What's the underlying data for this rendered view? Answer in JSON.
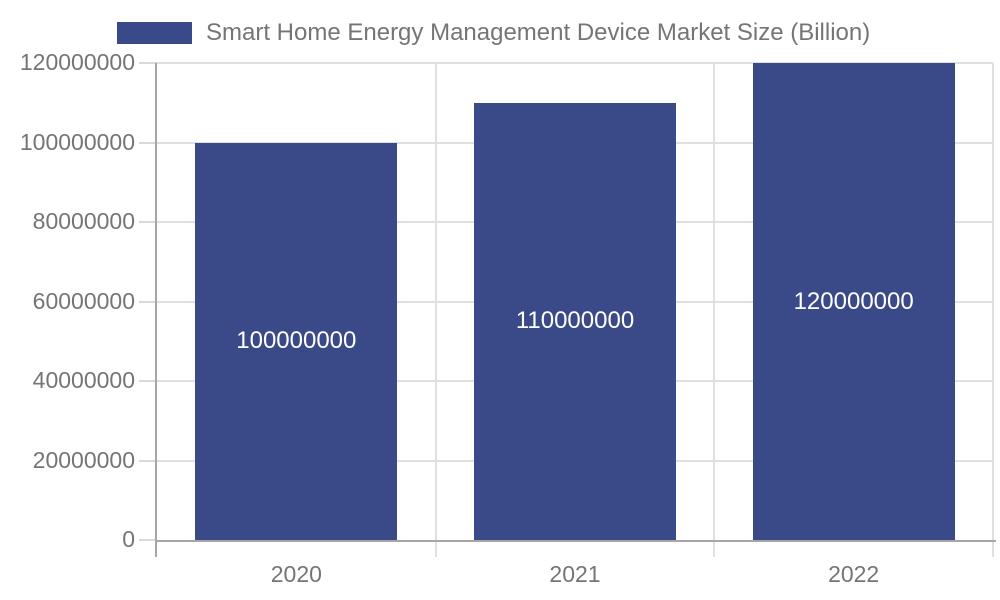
{
  "chart_data": {
    "type": "bar",
    "title": "Smart Home Energy Management Device Market Size (Billion)",
    "categories": [
      "2020",
      "2021",
      "2022"
    ],
    "values": [
      100000000,
      110000000,
      120000000
    ],
    "bar_labels": [
      "100000000",
      "110000000",
      "120000000"
    ],
    "xlabel": "",
    "ylabel": "",
    "ylim": [
      0,
      120000000
    ],
    "y_ticks": [
      0,
      20000000,
      40000000,
      60000000,
      80000000,
      100000000,
      120000000
    ],
    "y_tick_labels": [
      "0",
      "20000000",
      "40000000",
      "60000000",
      "80000000",
      "100000000",
      "120000000"
    ],
    "grid": "on",
    "legend_position": "top",
    "colors": {
      "bar_fill": "#3A4A89",
      "bar_value_text": "#FFFFFF",
      "axis_line": "#A6A6A6",
      "gridline": "#E0E0E0",
      "tick_mark": "#D9D9D9",
      "label_text": "#757575",
      "background": "#FFFFFF"
    }
  }
}
